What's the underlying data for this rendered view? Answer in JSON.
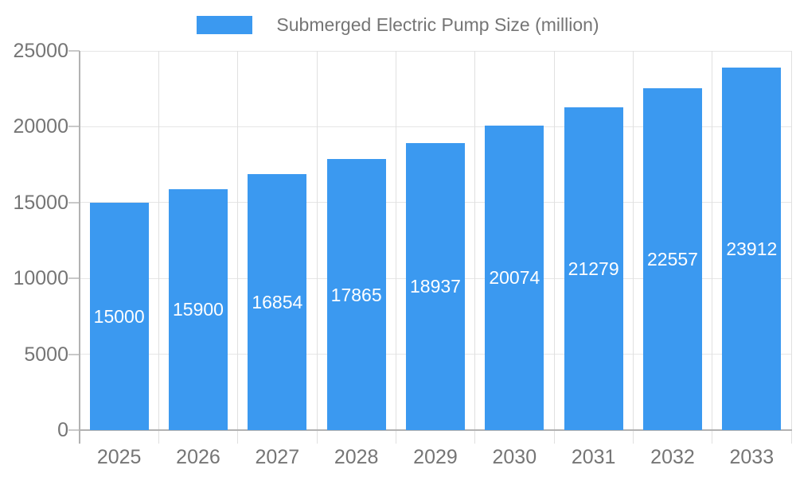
{
  "chart_data": {
    "type": "bar",
    "title": "Submerged Electric Pump Size (million)",
    "categories": [
      "2025",
      "2026",
      "2027",
      "2028",
      "2029",
      "2030",
      "2031",
      "2032",
      "2033"
    ],
    "series": [
      {
        "name": "Submerged Electric Pump Size (million)",
        "values": [
          15000,
          15900,
          16854,
          17865,
          18937,
          20074,
          21279,
          22557,
          23912
        ]
      }
    ],
    "xlabel": "",
    "ylabel": "",
    "ylim": [
      0,
      25000
    ],
    "yticks": [
      0,
      5000,
      10000,
      15000,
      20000,
      25000
    ],
    "grid": true,
    "legend_position": "top",
    "value_labels": "inside-center",
    "colors": {
      "bar": "#3B99F0",
      "axis_text": "#757575",
      "value_label": "#ffffff",
      "grid": "#e6e6e6",
      "grid_vertical": "#e0e0e0",
      "axis_line": "#b2b2b2",
      "tick": "#c9c9c9",
      "background": "#ffffff"
    }
  }
}
